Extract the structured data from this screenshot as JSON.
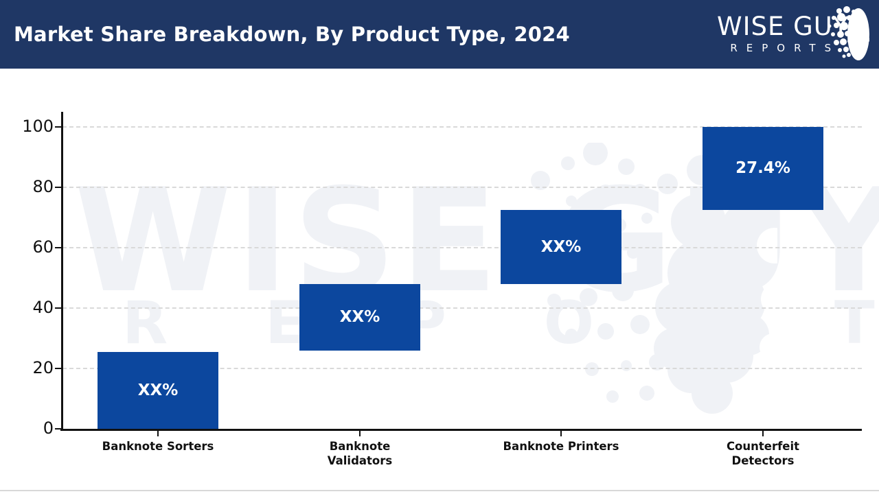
{
  "header": {
    "title": "Market Share Breakdown, By Product Type, 2024",
    "bg_color": "#1f3765",
    "logo": {
      "line1": "WISE GUY",
      "line2": "REPORTS"
    }
  },
  "watermark": {
    "line1": "WISE GUY",
    "line2": "R E P O R T S"
  },
  "chart_data": {
    "type": "bar",
    "subtype": "floating-segment-breakdown",
    "title": "Market Share Breakdown, By Product Type, 2024",
    "categories": [
      "Banknote Sorters",
      "Banknote Validators",
      "Banknote Printers",
      "Counterfeit Detectors"
    ],
    "segments": [
      {
        "category": "Banknote Sorters",
        "category_lines": [
          "Banknote Sorters"
        ],
        "start": 0,
        "end": 25.5,
        "label": "XX%"
      },
      {
        "category": "Banknote Validators",
        "category_lines": [
          "Banknote",
          "Validators"
        ],
        "start": 26,
        "end": 48,
        "label": "XX%"
      },
      {
        "category": "Banknote Printers",
        "category_lines": [
          "Banknote Printers"
        ],
        "start": 48,
        "end": 72.5,
        "label": "XX%"
      },
      {
        "category": "Counterfeit Detectors",
        "category_lines": [
          "Counterfeit",
          "Detectors"
        ],
        "start": 72.6,
        "end": 100,
        "label": "27.4%",
        "value": 27.4
      }
    ],
    "yticks": [
      0,
      20,
      40,
      60,
      80,
      100
    ],
    "ylim": [
      0,
      104
    ],
    "xlabel": "",
    "ylabel": "",
    "bar_color": "#0c479e",
    "grid": "horizontal-dashed",
    "legend": "none"
  }
}
